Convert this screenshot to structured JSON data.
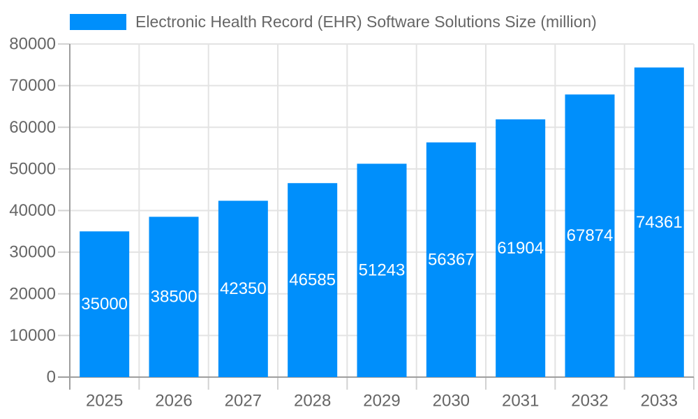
{
  "chart_data": {
    "type": "bar",
    "title": "Electronic Health Record (EHR) Software Solutions Size (million)",
    "categories": [
      "2025",
      "2026",
      "2027",
      "2028",
      "2029",
      "2030",
      "2031",
      "2032",
      "2033"
    ],
    "values": [
      35000,
      38500,
      42350,
      46585,
      51243,
      56367,
      61904,
      67874,
      74361
    ],
    "value_labels": [
      "35000",
      "38500",
      "42350",
      "46585",
      "51243",
      "56367",
      "61904",
      "67874",
      "74361"
    ],
    "xlabel": "",
    "ylabel": "",
    "ylim": [
      0,
      80000
    ],
    "ytick_step": 10000,
    "y_tick_labels": [
      "0",
      "10000",
      "20000",
      "30000",
      "40000",
      "50000",
      "60000",
      "70000",
      "80000"
    ],
    "grid": "horizontal-and-vertical",
    "legend_position": "top-left",
    "value_label_position": "inside-center",
    "colors": {
      "bar": "#008FFB",
      "axis": "#9e9e9e",
      "grid": "#e3e3e3",
      "tick": "#d2d2d2",
      "text": "#666666",
      "value_label": "#ffffff",
      "background": "#ffffff"
    }
  }
}
